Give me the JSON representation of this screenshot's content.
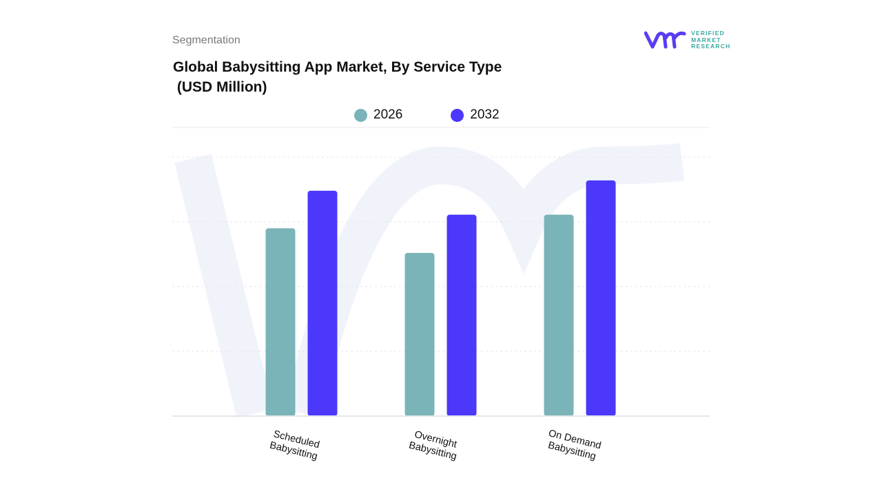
{
  "header": {
    "section": "Segmentation",
    "title": "Global Babysitting App Market, By Service Type\n (USD Million)"
  },
  "logo": {
    "name": "Verified Market Research",
    "lines": [
      "VERIFIED",
      "MARKET",
      "RESEARCH"
    ]
  },
  "chart_data": {
    "type": "bar",
    "title": "Global Babysitting App Market, By Service Type (USD Million)",
    "categories": [
      "Scheduled Babysitting",
      "Overnight Babysitting",
      "On Demand Babysitting"
    ],
    "category_lines": [
      [
        "Scheduled",
        "Babysitting"
      ],
      [
        "Overnight",
        "Babysitting"
      ],
      [
        "On Demand",
        "Babysitting"
      ]
    ],
    "series": [
      {
        "name": "2026",
        "color": "#7ab4b8",
        "values": [
          2.9,
          2.52,
          3.11
        ]
      },
      {
        "name": "2032",
        "color": "#4b38fb",
        "values": [
          3.48,
          3.11,
          3.64
        ]
      }
    ],
    "ylim": [
      0,
      4
    ],
    "y_axis_labels_shown": false,
    "grid": true,
    "legend": "top-center",
    "xlabel": "",
    "ylabel": ""
  }
}
